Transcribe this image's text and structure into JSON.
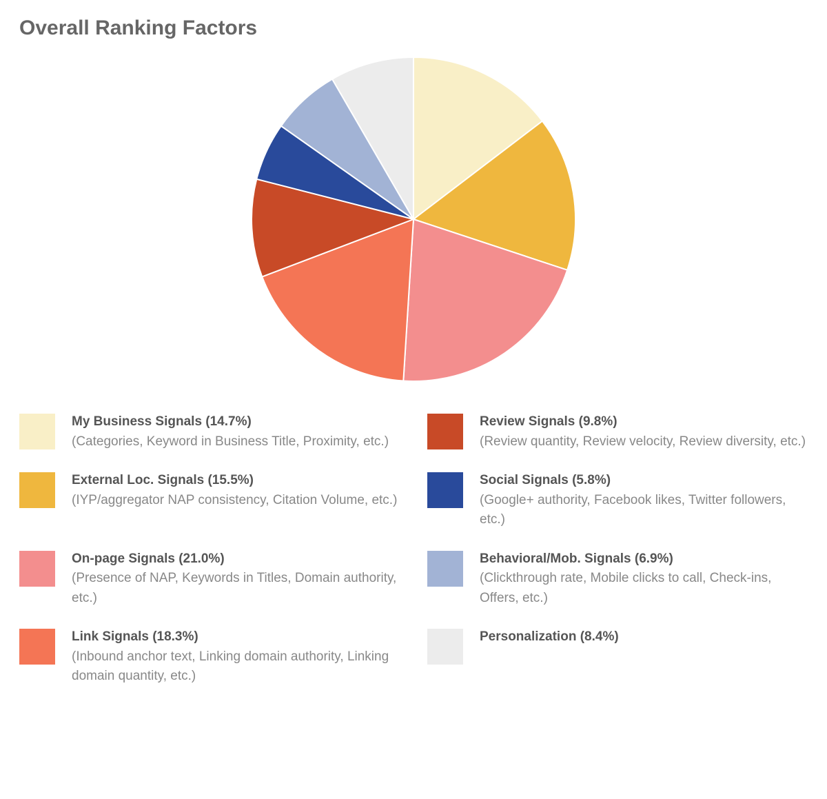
{
  "title": "Overall Ranking Factors",
  "title_color": "#666666",
  "title_fontsize": 30,
  "background_color": "#ffffff",
  "chart": {
    "type": "pie",
    "radius": 235,
    "start_angle_deg": 0,
    "direction": "clockwise",
    "stroke_color": "#ffffff",
    "stroke_width": 2,
    "segments": [
      {
        "label": "My Business Signals",
        "value": 14.7,
        "color": "#f9efc7"
      },
      {
        "label": "External Loc. Signals",
        "value": 15.5,
        "color": "#efb73e"
      },
      {
        "label": "On-page Signals",
        "value": 21.0,
        "color": "#f38e8e"
      },
      {
        "label": "Link Signals",
        "value": 18.3,
        "color": "#f47555"
      },
      {
        "label": "Review Signals",
        "value": 9.8,
        "color": "#c84a27"
      },
      {
        "label": "Social Signals",
        "value": 5.8,
        "color": "#294a9b"
      },
      {
        "label": "Behavioral/Mob. Signals",
        "value": 6.9,
        "color": "#a2b3d5"
      },
      {
        "label": "Personalization",
        "value": 8.4,
        "color": "#ececec"
      }
    ]
  },
  "legend": {
    "swatch_size": 52,
    "title_color": "#555555",
    "desc_color": "#888888",
    "title_fontsize": 19,
    "desc_fontsize": 19,
    "columns": 2,
    "items": [
      {
        "seg": 0,
        "title": "My Business Signals (14.7%)",
        "desc": "(Categories, Keyword in Business Title, Proximity, etc.)"
      },
      {
        "seg": 4,
        "title": "Review Signals (9.8%)",
        "desc": "(Review quantity, Review velocity, Review diversity, etc.)"
      },
      {
        "seg": 1,
        "title": "External Loc. Signals (15.5%)",
        "desc": "(IYP/aggregator NAP consistency, Citation Volume, etc.)"
      },
      {
        "seg": 5,
        "title": "Social Signals (5.8%)",
        "desc": "(Google+ authority, Facebook likes, Twitter followers, etc.)"
      },
      {
        "seg": 2,
        "title": "On-page Signals (21.0%)",
        "desc": "(Presence of NAP, Keywords in Titles, Domain authority, etc.)"
      },
      {
        "seg": 6,
        "title": "Behavioral/Mob. Signals (6.9%)",
        "desc": "(Clickthrough rate, Mobile clicks to call, Check-ins, Offers, etc.)"
      },
      {
        "seg": 3,
        "title": "Link Signals (18.3%)",
        "desc": "(Inbound anchor text, Linking domain authority, Linking domain quantity, etc.)"
      },
      {
        "seg": 7,
        "title": "Personalization (8.4%)",
        "desc": ""
      }
    ]
  }
}
